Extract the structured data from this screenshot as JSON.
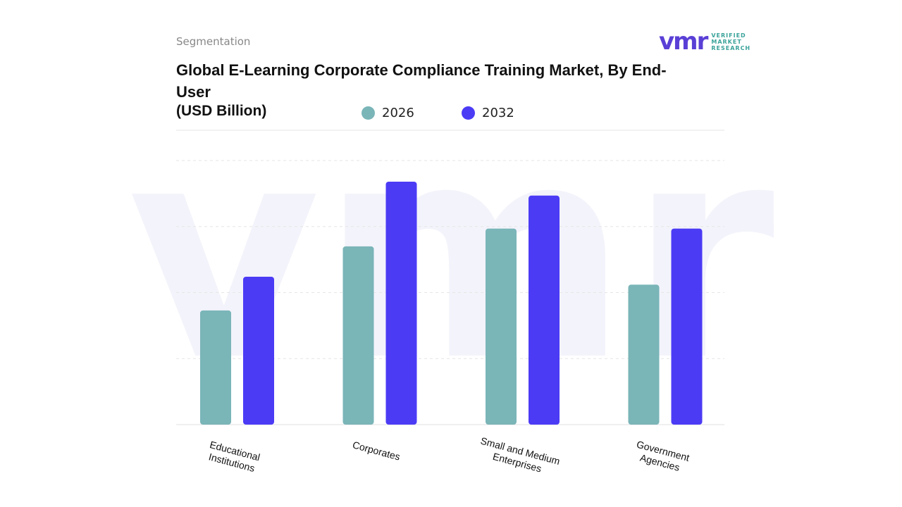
{
  "header": {
    "section": "Segmentation",
    "logo": {
      "mark": "vmr",
      "lines": [
        "VERIFIED",
        "MARKET",
        "RESEARCH"
      ]
    }
  },
  "chart_data": {
    "type": "bar",
    "title": "Global E-Learning Corporate Compliance Training Market, By End-User",
    "subtitle": "(USD Billion)",
    "categories": [
      "Educational Institutions",
      "Corporates",
      "Small and Medium Enterprises",
      "Government Agencies"
    ],
    "series": [
      {
        "name": "2026",
        "color": "#7ab5b8",
        "values": [
          1.73,
          2.7,
          2.97,
          2.12
        ]
      },
      {
        "name": "2032",
        "color": "#4b3bf5",
        "values": [
          2.24,
          3.68,
          3.47,
          2.97
        ]
      }
    ],
    "ylim": [
      0,
      4
    ],
    "yticks": [
      0,
      1,
      2,
      3,
      4
    ],
    "grid": true
  }
}
